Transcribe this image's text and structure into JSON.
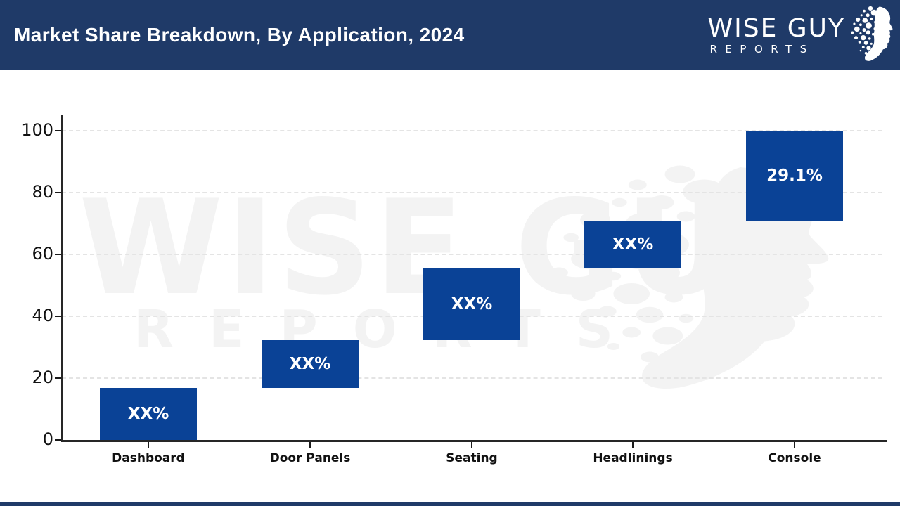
{
  "header": {
    "title": "Market Share Breakdown, By Application, 2024",
    "logo": {
      "line1": "WISE GUY",
      "line2": "REPORTS"
    }
  },
  "chart_data": {
    "type": "bar",
    "subtype": "waterfall-floating-bars",
    "title": "Market Share Breakdown, By Application, 2024",
    "xlabel": "",
    "ylabel": "",
    "ylim": [
      0,
      105
    ],
    "yticks": [
      0,
      20,
      40,
      60,
      80,
      100
    ],
    "grid": "horizontal-dashed",
    "legend": "none",
    "bar_color": "#0a4296",
    "categories": [
      "Dashboard",
      "Door Panels",
      "Seating",
      "Headlinings",
      "Console"
    ],
    "segments": [
      {
        "category": "Dashboard",
        "start": 0,
        "end": 16.8,
        "value": 16.8,
        "label": "XX%"
      },
      {
        "category": "Door Panels",
        "start": 16.8,
        "end": 32.3,
        "value": 15.5,
        "label": "XX%"
      },
      {
        "category": "Seating",
        "start": 32.3,
        "end": 55.4,
        "value": 23.1,
        "label": "XX%"
      },
      {
        "category": "Headlinings",
        "start": 55.4,
        "end": 70.9,
        "value": 15.5,
        "label": "XX%"
      },
      {
        "category": "Console",
        "start": 70.9,
        "end": 100,
        "value": 29.1,
        "label": "29.1%"
      }
    ],
    "watermark": {
      "line1": "WISE GU",
      "line2": "REPORTS"
    }
  },
  "colors": {
    "header_bg": "#1f3a68",
    "bar": "#0a4296",
    "gridline": "#e4e4e4",
    "axis": "#262626",
    "watermark": "#f3f3f3"
  }
}
